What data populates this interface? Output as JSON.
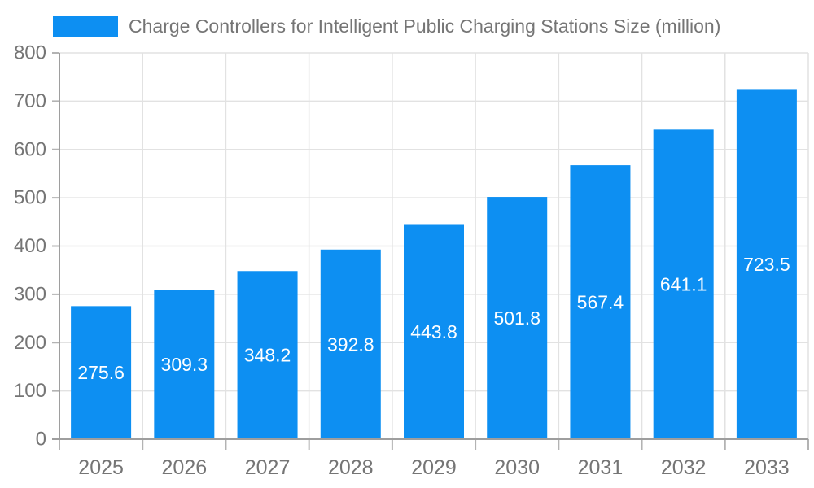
{
  "legend": {
    "label": "Charge Controllers for Intelligent Public Charging Stations Size (million)"
  },
  "chart_data": {
    "type": "bar",
    "title": "Charge Controllers for Intelligent Public Charging Stations Size (million)",
    "categories": [
      "2025",
      "2026",
      "2027",
      "2028",
      "2029",
      "2030",
      "2031",
      "2032",
      "2033"
    ],
    "values": [
      275.6,
      309.3,
      348.2,
      392.8,
      443.8,
      501.8,
      567.4,
      641.1,
      723.5
    ],
    "value_labels": [
      "275.6",
      "309.3",
      "348.2",
      "392.8",
      "443.8",
      "501.8",
      "567.4",
      "641.1",
      "723.5"
    ],
    "xlabel": "",
    "ylabel": "",
    "ylim": [
      0,
      800
    ],
    "yticks": [
      0,
      100,
      200,
      300,
      400,
      500,
      600,
      700,
      800
    ],
    "grid": true,
    "legend_position": "top-left",
    "colors": {
      "bar": "#0D8FF2",
      "value_label": "#ffffff",
      "axis_text": "#757575",
      "gridline": "#e2e2e2",
      "axis_line": "#9e9e9e",
      "tick_line": "#b3b3b3"
    }
  }
}
